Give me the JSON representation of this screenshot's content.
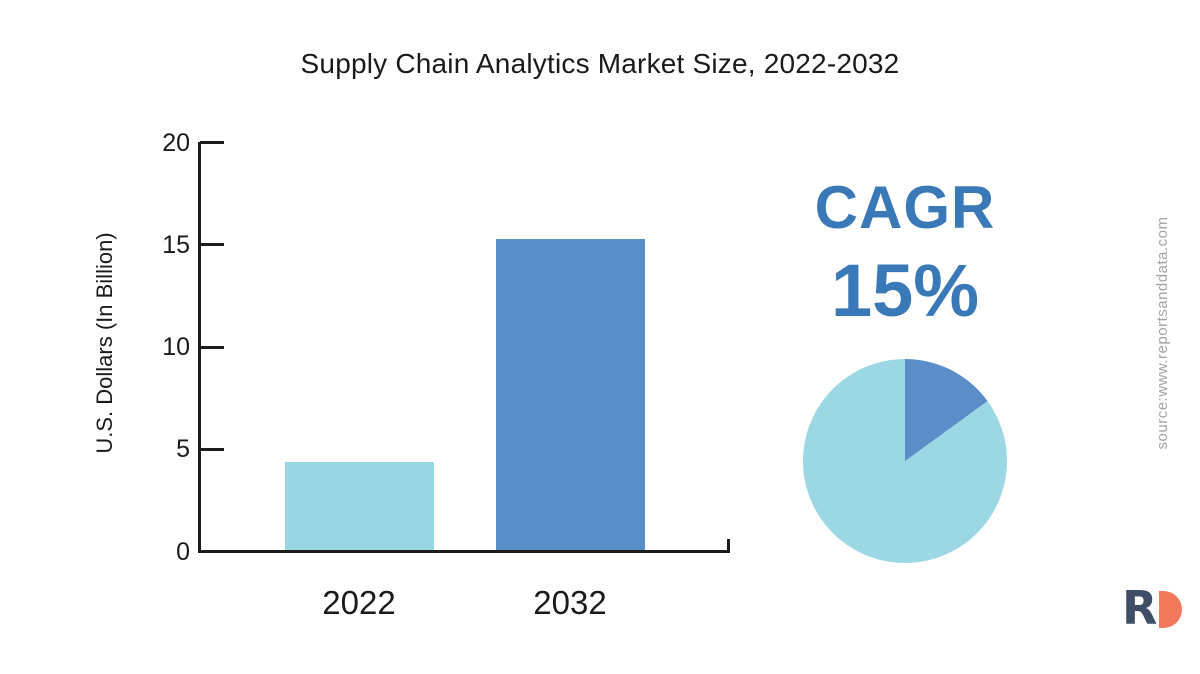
{
  "title": "Supply Chain Analytics Market Size, 2022-2032",
  "chart_data": [
    {
      "type": "bar",
      "title": "Supply Chain Analytics Market Size, 2022-2032",
      "categories": [
        "2022",
        "2032"
      ],
      "values": [
        4.3,
        15.2
      ],
      "xlabel": "",
      "ylabel": "U.S. Dollars (In Billion)",
      "ylim": [
        0,
        20
      ],
      "yticks": [
        0,
        5,
        10,
        15,
        20
      ],
      "bar_colors": [
        "#97d6e2",
        "#588fc6"
      ],
      "grid": false,
      "legend": false
    },
    {
      "type": "pie",
      "slices": [
        {
          "name": "cagr-slice",
          "value": 15,
          "color": "#5b8dc9"
        },
        {
          "name": "remainder-slice",
          "value": 85,
          "color": "#9bd8e3"
        }
      ],
      "start_angle_deg": 0,
      "direction": "clockwise"
    }
  ],
  "cagr": {
    "label": "CAGR",
    "value": "15%"
  },
  "source": {
    "text": "source:www.reportsanddata.com"
  },
  "logo": {
    "r": "R"
  },
  "colors": {
    "background": "#ffffff",
    "text": "#1a1a1a",
    "axis": "#1c1c1c",
    "cagr_text": "#3a79b7",
    "source_text": "#a3a3a3",
    "logo_r": "#3f4d66",
    "logo_d": "#f2795b"
  }
}
